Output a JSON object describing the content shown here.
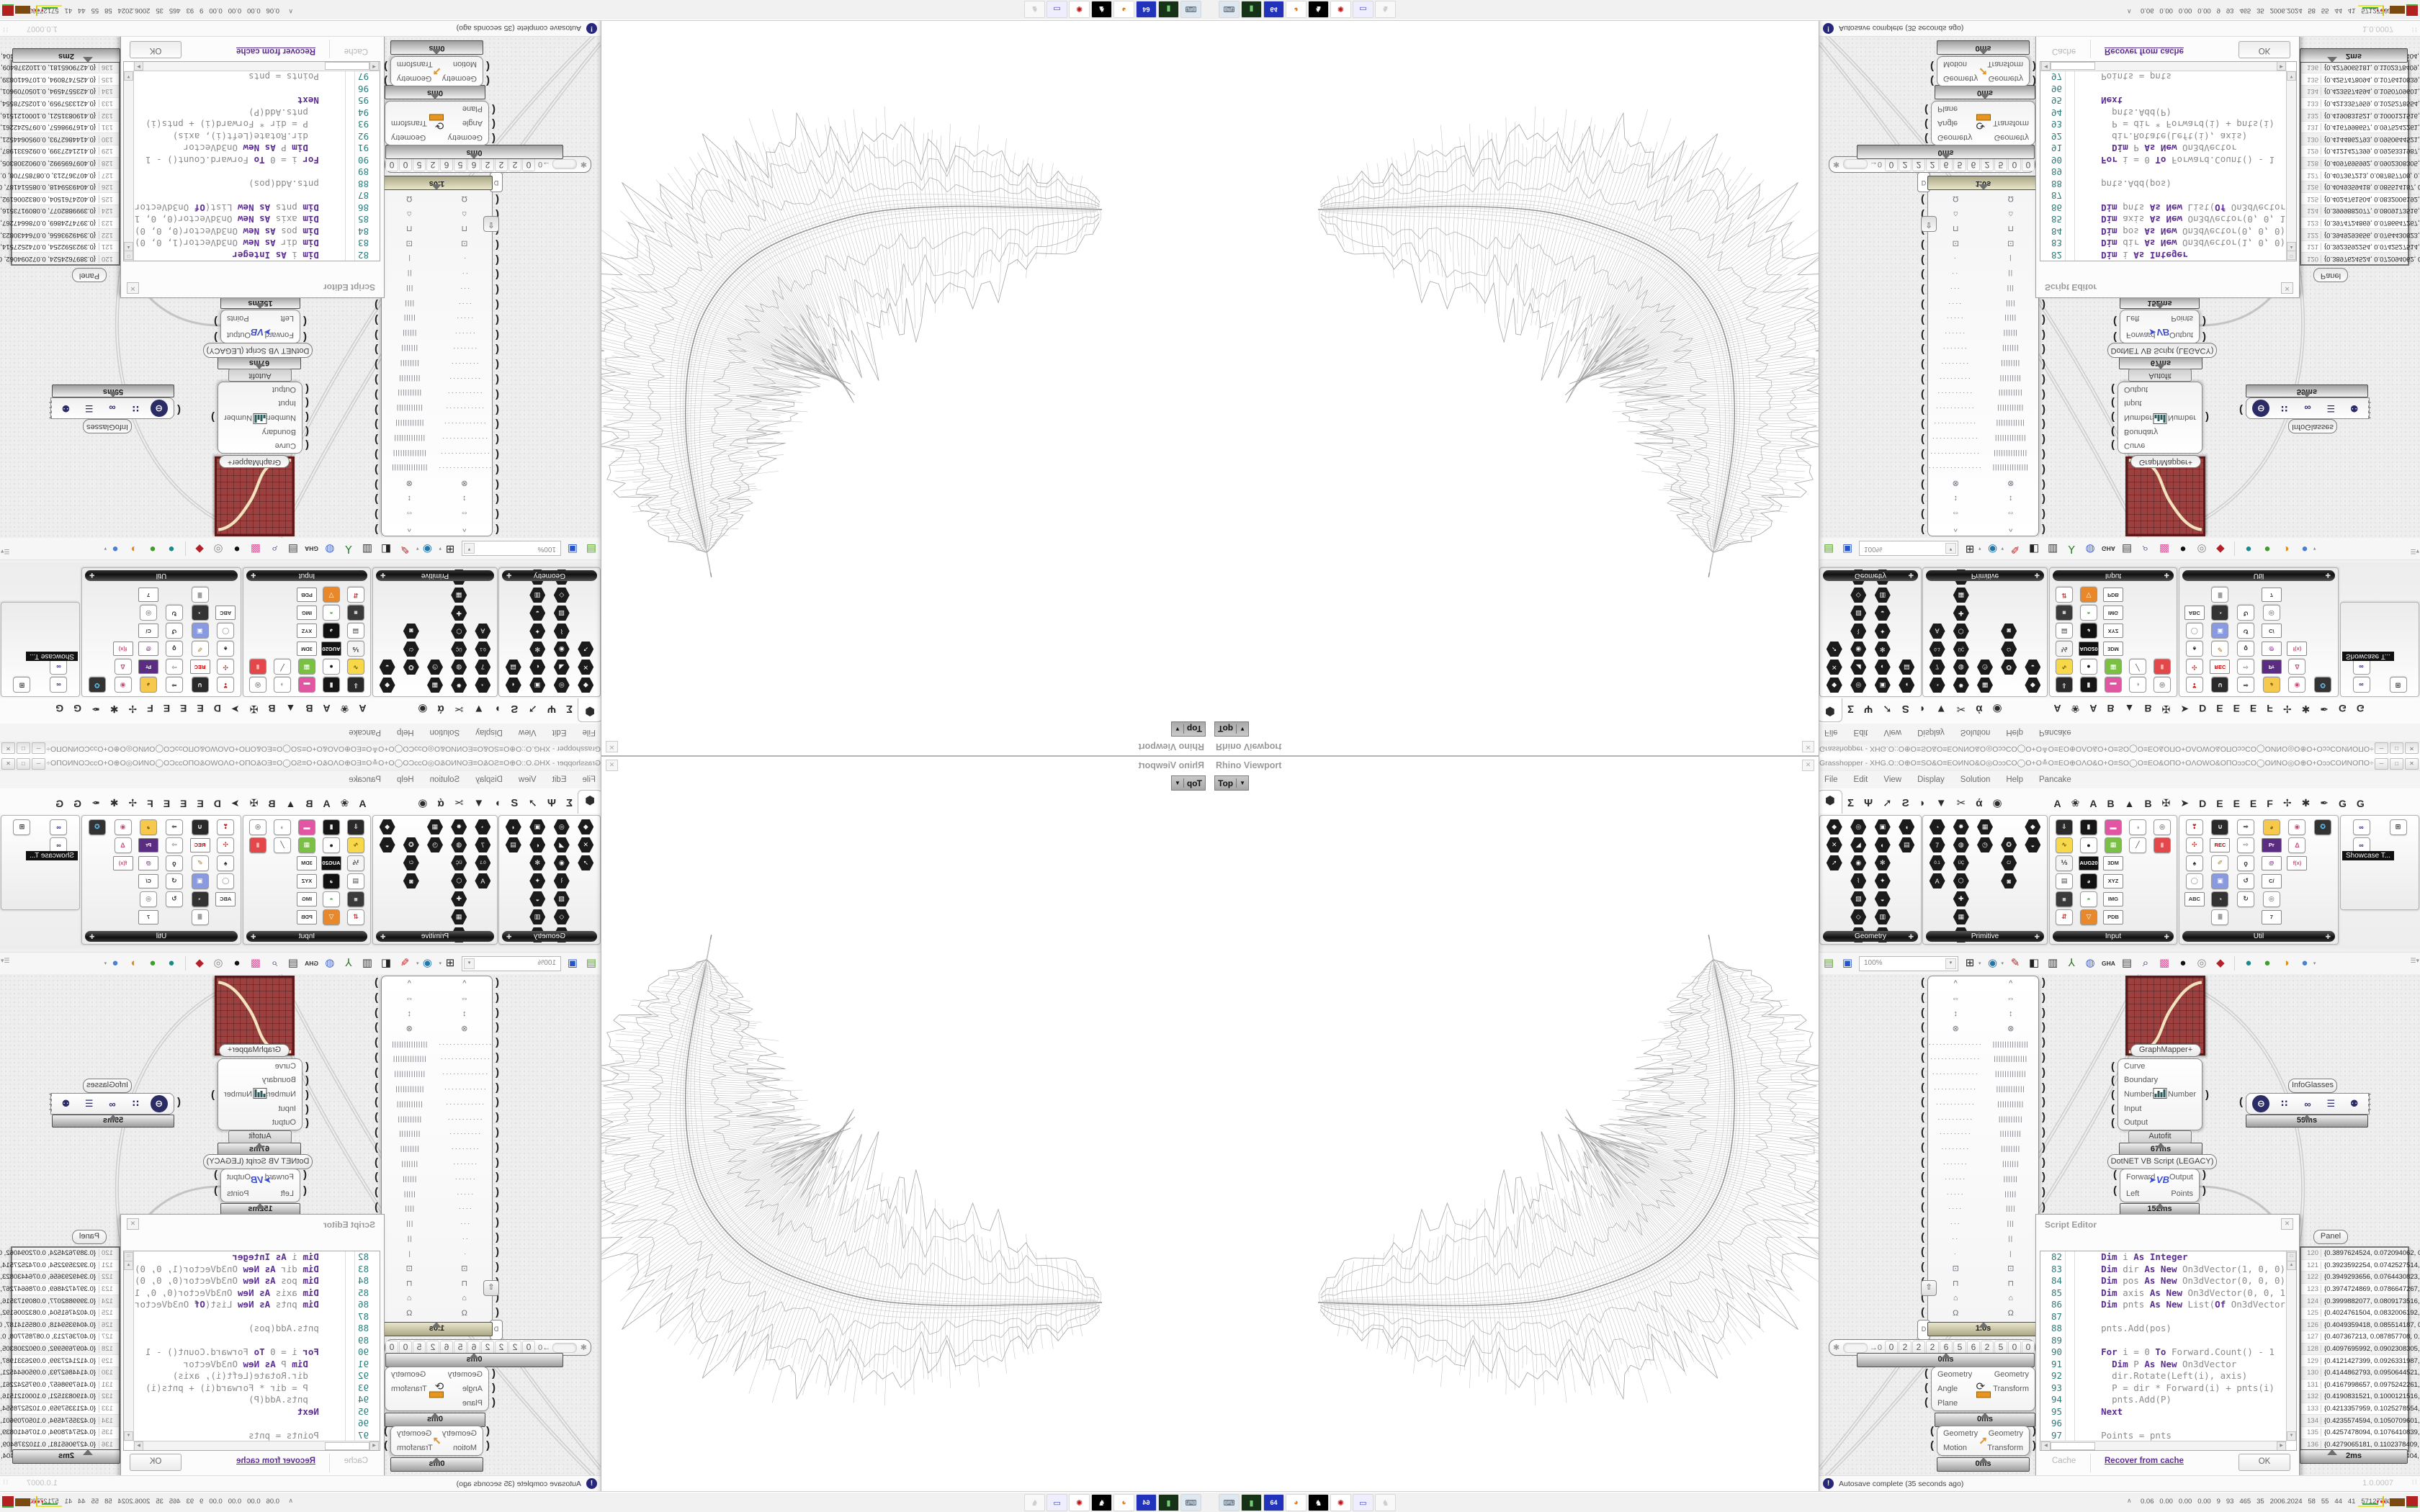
{
  "window": {
    "title": "Grasshopper - XHG.O::O⊕O≡SO&O≡EOИNO&O◎OɔɔCO◯O+O≛O≡EO⊕OΛO&O+O≡SO◯O≡EO&OΠO+OΛOWO&OΠOɔɔCO◯OИNO◎O⊕O+OɔɔCOИNOΠO÷O◯O≡SOΠO⊕O=...",
    "buttons": [
      "─",
      "□",
      "✕"
    ]
  },
  "menu": [
    "File",
    "Edit",
    "View",
    "Display",
    "Solution",
    "Help",
    "Pancake"
  ],
  "tabs": [
    "⬢",
    "Σ",
    "Ψ",
    "➚",
    "Ƨ",
    "◗",
    "▼",
    "✂",
    "ά",
    "◉",
    "A",
    "❀",
    "A",
    "B",
    "▲",
    "B",
    "✠",
    "➤",
    "D",
    "E",
    "E",
    "E",
    "F",
    "✢",
    "✱",
    "✒",
    "G",
    "G"
  ],
  "palettes": {
    "groups": [
      {
        "label": "Geometry",
        "cols": 4,
        "style": "hex",
        "icons": [
          "◆",
          "◎",
          "▣",
          "◖",
          "✕",
          "◢",
          "◐",
          "▤",
          "➚",
          "◉",
          "✻",
          null,
          null,
          "⌇",
          "✦",
          null,
          null,
          "▨",
          "◒",
          null,
          null,
          "◇",
          "▥",
          null,
          null,
          "◈",
          "℞",
          null
        ]
      },
      {
        "label": "Primitive",
        "cols": 5,
        "style": "hex",
        "icons": [
          "◔",
          "✸",
          "▦",
          null,
          "◆",
          "7",
          "◍",
          "◷",
          "✪",
          "◒",
          "0.1",
          "ÜÇ",
          null,
          "C/",
          null,
          "A",
          "⬡",
          null,
          "◙",
          null,
          null,
          "✚",
          null,
          null,
          null,
          null,
          "▦",
          null,
          null,
          null,
          null,
          "ID",
          null,
          null,
          null
        ]
      },
      {
        "label": "Input",
        "cols": 5,
        "style": "sq",
        "icons": [
          {
            "g": "⇩",
            "bg": "#2a2a2a",
            "fg": "#fff"
          },
          {
            "g": "▮",
            "bg": "#161616",
            "fg": "#eee"
          },
          {
            "g": "▬",
            "bg": "#e255a2",
            "fg": "#fff"
          },
          {
            "g": "◑",
            "bg": "#ffffff",
            "fg": "#999"
          },
          {
            "g": "◎",
            "bg": "#ffffff",
            "fg": "#333"
          },
          {
            "g": "∿",
            "bg": "#f7d84b",
            "fg": "#6b5200"
          },
          {
            "g": "●",
            "bg": "#ffffff",
            "fg": "#1a1a1a"
          },
          {
            "g": "▦",
            "bg": "#7ac143",
            "fg": "#fff"
          },
          {
            "g": "╱",
            "bg": "#ffffff",
            "fg": "#444"
          },
          {
            "g": "‖",
            "bg": "#e3474a",
            "fg": "#fff"
          },
          {
            "g": "⅕",
            "bg": "#f4f4f4",
            "fg": "#333"
          },
          {
            "g": "AUG20",
            "bg": "#111",
            "fg": "#fff",
            "chip": true
          },
          {
            "g": "3DM",
            "bg": "#fff",
            "fg": "#333",
            "chip": true
          },
          null,
          null,
          {
            "g": "▤",
            "bg": "#fff",
            "fg": "#444"
          },
          {
            "g": "◕",
            "bg": "#111",
            "fg": "#eee"
          },
          {
            "g": "XYZ",
            "bg": "#fff",
            "fg": "#333",
            "chip": true
          },
          null,
          null,
          {
            "g": "■",
            "bg": "#3a3a3a",
            "fg": "#ccc"
          },
          {
            "g": "◓",
            "bg": "#fff",
            "fg": "#3aa13a"
          },
          {
            "g": "IMG",
            "bg": "#fff",
            "fg": "#333",
            "chip": true
          },
          null,
          null,
          {
            "g": "⇵",
            "bg": "#fff",
            "fg": "#c03a3a"
          },
          {
            "g": "▽",
            "bg": "#e8882a",
            "fg": "#fff"
          },
          {
            "g": "PDB",
            "bg": "#fff",
            "fg": "#333",
            "chip": true
          },
          null,
          null
        ]
      },
      {
        "label": "Util",
        "cols": 6,
        "style": "sq",
        "icons": [
          {
            "g": "❣",
            "bg": "#fff",
            "fg": "#c22222"
          },
          {
            "g": "∪",
            "bg": "#2a2a2a",
            "fg": "#eee"
          },
          {
            "g": "➡",
            "bg": "#fff",
            "fg": "#666"
          },
          {
            "g": "◕",
            "bg": "#f6c84c",
            "fg": "#7a5a00"
          },
          {
            "g": "◉",
            "bg": "#fff",
            "fg": "#c4507a"
          },
          {
            "g": "✪",
            "bg": "#333",
            "fg": "#6cf"
          },
          {
            "g": "✣",
            "bg": "#fff",
            "fg": "#c0392b"
          },
          {
            "g": "REC",
            "bg": "#fff",
            "fg": "#cc0000",
            "chip": true
          },
          {
            "g": "⇨",
            "bg": "#fff",
            "fg": "#888"
          },
          {
            "g": "Pr",
            "bg": "#5a2d82",
            "fg": "#fff",
            "chip": true
          },
          {
            "g": "Δ",
            "bg": "#fff",
            "fg": "#c4507a"
          },
          null,
          {
            "g": "♠",
            "bg": "#fff",
            "fg": "#2a2a2a"
          },
          {
            "g": "✐",
            "bg": "#fff",
            "fg": "#a8762a"
          },
          {
            "g": "ϙ",
            "bg": "#fff",
            "fg": "#333"
          },
          {
            "g": "@",
            "bg": "#fff",
            "fg": "#7a2d82",
            "chip": true
          },
          {
            "g": "f(x)",
            "bg": "#fff",
            "fg": "#c4507a",
            "chip": true
          },
          null,
          {
            "g": "◯",
            "bg": "#fff",
            "fg": "#888"
          },
          {
            "g": "▣",
            "bg": "#8a9ae0",
            "fg": "#fff"
          },
          {
            "g": "↺",
            "bg": "#fff",
            "fg": "#333"
          },
          {
            "g": "C/",
            "bg": "#fff",
            "fg": "#333",
            "chip": true
          },
          null,
          null,
          {
            "g": "ABC",
            "bg": "#fff",
            "fg": "#333",
            "chip": true
          },
          {
            "g": "◔",
            "bg": "#333",
            "fg": "#fff"
          },
          {
            "g": "↻",
            "bg": "#fff",
            "fg": "#333"
          },
          {
            "g": "◎",
            "bg": "#fff",
            "fg": "#555"
          },
          null,
          null,
          null,
          {
            "g": "≣",
            "bg": "#fff",
            "fg": "#555"
          },
          null,
          {
            "g": "7",
            "bg": "#fff",
            "fg": "#333",
            "chip": true
          },
          null,
          null
        ]
      },
      {
        "label": null,
        "cols": 2,
        "style": "sq",
        "icons": [
          {
            "g": "∞",
            "bg": "#fff",
            "fg": "#24247a"
          },
          {
            "g": "⊞",
            "bg": "#fff",
            "fg": "#222"
          },
          {
            "g": "∞",
            "bg": "#fff",
            "fg": "#24247a"
          },
          null
        ]
      }
    ],
    "showcase_tooltip": "Showcase T..."
  },
  "toolbar": {
    "zoom": "100%",
    "icons": [
      {
        "g": "▤",
        "c": "#5aa02c"
      },
      {
        "g": "▣",
        "c": "#2255cc"
      },
      {
        "zoom": true
      },
      {
        "g": "⊞",
        "c": "#222",
        "dd": true
      },
      {
        "g": "◉",
        "c": "#2277aa",
        "dd": true
      },
      {
        "g": "✎",
        "c": "#c22222"
      },
      {
        "g": "◧",
        "c": "#222"
      },
      {
        "g": "▥",
        "c": "#333"
      },
      {
        "g": "⅄",
        "c": "#2a7a2a"
      },
      {
        "g": "◍",
        "c": "#4466cc"
      },
      {
        "g": "GHA",
        "c": "#333",
        "text": true
      },
      {
        "g": "▤",
        "c": "#444"
      },
      {
        "g": "⌕",
        "c": "#333366"
      },
      {
        "g": "▩",
        "c": "#e255a2"
      },
      {
        "g": "●",
        "c": "#111"
      },
      {
        "g": "◎",
        "c": "#888"
      },
      {
        "g": "◆",
        "c": "#b3202a"
      },
      {
        "sep": true
      },
      {
        "g": "●",
        "c": "#1d8a8a"
      },
      {
        "g": "●",
        "c": "#3f9d2f"
      },
      {
        "g": "◑",
        "c": "#e08c1a"
      },
      {
        "g": "●",
        "c": "#4a7fd4",
        "dd": true
      }
    ]
  },
  "canvas": {
    "tall_component": {
      "rows": [
        {
          "s": "^"
        },
        {
          "s": "⇔"
        },
        {
          "s": "↕"
        },
        {
          "s": "⊗"
        },
        {
          "d": 15
        },
        {
          "d": 14
        },
        {
          "d": 13
        },
        {
          "d": 12
        },
        {
          "d": 11
        },
        {
          "d": 10
        },
        {
          "d": 9
        },
        {
          "d": 8
        },
        {
          "d": 7
        },
        {
          "d": 6
        },
        {
          "d": 5
        },
        {
          "d": 4
        },
        {
          "d": 3
        },
        {
          "d": 2
        },
        {
          "d": 1
        },
        {
          "s": "⊡"
        },
        {
          "s": "⊓"
        },
        {
          "s": "⌂"
        },
        {
          "s": "Ω"
        }
      ],
      "time": "1.0s"
    },
    "scroller": {
      "icon": "✱",
      "sign": "→0",
      "digits": [
        "0",
        "2",
        "2",
        "2",
        "6",
        "5",
        "6",
        "2",
        "5",
        "0",
        "0"
      ],
      "time": "0ms"
    },
    "rotate": {
      "inputs": [
        "Geometry",
        "Angle",
        "Plane"
      ],
      "outputs": [
        "Geometry",
        "Transform"
      ],
      "time": "0ms"
    },
    "move": {
      "inputs": [
        "Geometry",
        "Motion"
      ],
      "outputs": [
        "Geometry",
        "Transform"
      ],
      "time": "0ms"
    },
    "graphmapper": {
      "label": "GraphMapper+"
    },
    "autofit": {
      "name": "Autofit",
      "inputs": [
        "Curve",
        "Boundary",
        "Numbers",
        "Input",
        "Output"
      ],
      "outputs": [
        "Number"
      ],
      "time": "67ms"
    },
    "vbscript": {
      "label": "DotNET VB Script (LEGACY)",
      "inputs": [
        "Forward",
        "Left"
      ],
      "outputs": [
        "Output",
        "Points"
      ],
      "logo": "VB",
      "time": "152ms"
    },
    "infoglasses": {
      "label": "InfoGlasses",
      "icons": [
        "⊖",
        "∷",
        "∞",
        "☰",
        "⚉"
      ],
      "time": "59ms"
    }
  },
  "panel": {
    "label": "Panel",
    "time": "2ms",
    "rows": [
      {
        "n": "120",
        "v": "{0.3897624524, 0.072094062, 0.0}"
      },
      {
        "n": "121",
        "v": "{0.3923592254, 0.0742527514, 0.0}"
      },
      {
        "n": "122",
        "v": "{0.3949293656, 0.0764430823, 0.0}"
      },
      {
        "n": "123",
        "v": "{0.3974724869, 0.0786647267, 0.0}"
      },
      {
        "n": "124",
        "v": "{0.3999882077, 0.0809173516, 0.0}"
      },
      {
        "n": "125",
        "v": "{0.4024761504, 0.0832006192, 0.0}"
      },
      {
        "n": "126",
        "v": "{0.4049359418, 0.085514187, 0.0}"
      },
      {
        "n": "127",
        "v": "{0.407367213, 0.087857708, 0.0}"
      },
      {
        "n": "128",
        "v": "{0.4097695992, 0.0902308305, 0.0}"
      },
      {
        "n": "129",
        "v": "{0.4121427399, 0.0926331987, 0.0}"
      },
      {
        "n": "130",
        "v": "{0.4144862793, 0.0950644521, 0.0}"
      },
      {
        "n": "131",
        "v": "{0.4167998657, 0.0975242261, 0.0}"
      },
      {
        "n": "132",
        "v": "{0.4190831521, 0.1000121516, 0.0}"
      },
      {
        "n": "133",
        "v": "{0.4213357959, 0.1025278554, 0.0}"
      },
      {
        "n": "134",
        "v": "{0.4235574594, 0.1050709601, 0.0}"
      },
      {
        "n": "135",
        "v": "{0.4257478094, 0.1076410839, 0.0}"
      },
      {
        "n": "136",
        "v": "{0.4279065181, 0.1102378409, 0.0}"
      },
      {
        "n": "137",
        "v": "{0.4300332629, 0.1128608404, 0.0}"
      }
    ]
  },
  "script_editor": {
    "title": "Script Editor",
    "close": "✕",
    "buttons": {
      "cache": "Cache",
      "recover": "Recover from cache",
      "ok": "OK"
    },
    "code": [
      {
        "n": "82",
        "segs": [
          [
            "i",
            "    "
          ],
          [
            "k",
            "Dim"
          ],
          [
            "i",
            " i "
          ],
          [
            "k",
            "As"
          ],
          [
            "i",
            " "
          ],
          [
            "k",
            "Integer"
          ]
        ]
      },
      {
        "n": "83",
        "segs": [
          [
            "i",
            "    "
          ],
          [
            "k",
            "Dim"
          ],
          [
            "i",
            " dir "
          ],
          [
            "k",
            "As"
          ],
          [
            "i",
            " "
          ],
          [
            "k",
            "New"
          ],
          [
            "i",
            " On3dVector(1, 0, 0)"
          ]
        ]
      },
      {
        "n": "84",
        "segs": [
          [
            "i",
            "    "
          ],
          [
            "k",
            "Dim"
          ],
          [
            "i",
            " pos "
          ],
          [
            "k",
            "As"
          ],
          [
            "i",
            " "
          ],
          [
            "k",
            "New"
          ],
          [
            "i",
            " On3dVector(0, 0, 0)"
          ]
        ]
      },
      {
        "n": "85",
        "segs": [
          [
            "i",
            "    "
          ],
          [
            "k",
            "Dim"
          ],
          [
            "i",
            " axis "
          ],
          [
            "k",
            "As"
          ],
          [
            "i",
            " "
          ],
          [
            "k",
            "New"
          ],
          [
            "i",
            " On3dVector(0, 0, 1)"
          ]
        ]
      },
      {
        "n": "86",
        "segs": [
          [
            "i",
            "    "
          ],
          [
            "k",
            "Dim"
          ],
          [
            "i",
            " pnts "
          ],
          [
            "k",
            "As"
          ],
          [
            "i",
            " "
          ],
          [
            "k",
            "New"
          ],
          [
            "i",
            " List("
          ],
          [
            "k",
            "Of"
          ],
          [
            "i",
            " On3dVector)"
          ]
        ]
      },
      {
        "n": "87",
        "segs": []
      },
      {
        "n": "88",
        "segs": [
          [
            "i",
            "    pnts.Add(pos)"
          ]
        ]
      },
      {
        "n": "89",
        "segs": []
      },
      {
        "n": "90",
        "segs": [
          [
            "i",
            "    "
          ],
          [
            "k",
            "For"
          ],
          [
            "i",
            " i = 0 "
          ],
          [
            "k",
            "To"
          ],
          [
            "i",
            " Forward.Count() - 1"
          ]
        ]
      },
      {
        "n": "91",
        "segs": [
          [
            "i",
            "      "
          ],
          [
            "k",
            "Dim"
          ],
          [
            "i",
            " P "
          ],
          [
            "k",
            "As"
          ],
          [
            "i",
            " "
          ],
          [
            "k",
            "New"
          ],
          [
            "i",
            " On3dVector"
          ]
        ]
      },
      {
        "n": "92",
        "segs": [
          [
            "i",
            "      dir.Rotate(Left(i), axis)"
          ]
        ]
      },
      {
        "n": "93",
        "segs": [
          [
            "i",
            "      P = dir * Forward(i) + pnts(i)"
          ]
        ]
      },
      {
        "n": "94",
        "segs": [
          [
            "i",
            "      pnts.Add(P)"
          ]
        ]
      },
      {
        "n": "95",
        "segs": [
          [
            "i",
            "    "
          ],
          [
            "k",
            "Next"
          ]
        ]
      },
      {
        "n": "96",
        "segs": []
      },
      {
        "n": "97",
        "segs": [
          [
            "i",
            "    Points = pnts"
          ]
        ]
      }
    ]
  },
  "status": {
    "autosave": "Autosave complete (35 seconds ago)",
    "version": "1.0.0007"
  },
  "viewport": {
    "title": "Rhino Viewport",
    "view": "Top"
  },
  "taskbar": {
    "launchers": [
      {
        "g": "⌨",
        "bg": "#dfe7f0",
        "c": "#445566"
      },
      {
        "g": "▮",
        "bg": "#173317",
        "c": "#77cc77"
      },
      {
        "g": "64",
        "bg": "#2233bb",
        "c": "#ffffff"
      },
      {
        "g": "◕",
        "bg": "#ffffff",
        "c": "#e67817"
      },
      {
        "g": "♞",
        "bg": "#000000",
        "c": "#ffffff"
      },
      {
        "g": "✺",
        "bg": "#ffffff",
        "c": "#bb1111"
      },
      {
        "g": "▭",
        "bg": "#eeeeff",
        "c": "#4444cc"
      },
      {
        "g": "♞",
        "bg": "#f8f8f8",
        "c": "#cccccc"
      }
    ],
    "chevron": "∧",
    "numbers": [
      "0.06",
      "0.00",
      "0.00",
      "0.00",
      "9",
      "93",
      "465",
      "35",
      "2006.2024",
      "58",
      "55",
      "44",
      "41",
      "57127733"
    ]
  },
  "colors": {
    "keyword": "#5c2d91",
    "identifier": "#8a8a8a",
    "line_number": "#2e7b7b",
    "graphmapper_bg": "#9c4040",
    "graphmapper_curve": "#f2e2bd",
    "timer_bar": "#c9c6a5",
    "wire": "#cdcdcd"
  }
}
